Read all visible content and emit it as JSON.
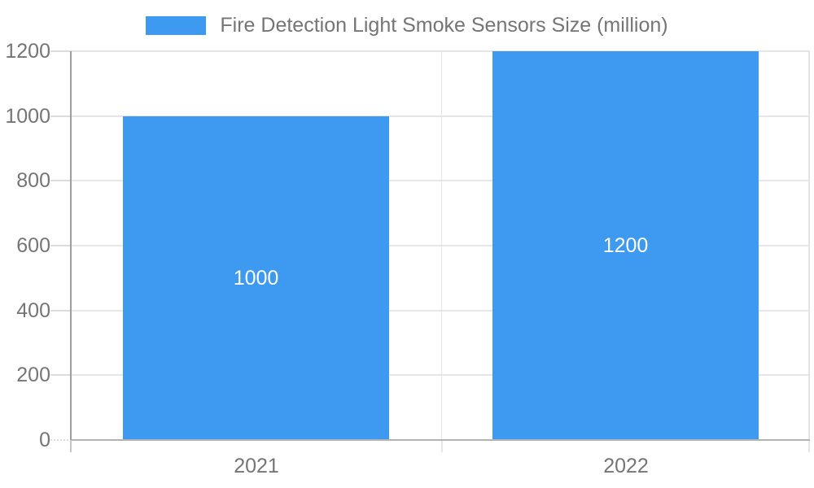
{
  "chart_data": {
    "type": "bar",
    "title": "Fire Detection Light Smoke Sensors Size (million)",
    "categories": [
      "2021",
      "2022"
    ],
    "series": [
      {
        "name": "Fire Detection Light Smoke Sensors Size (million)",
        "values": [
          1000,
          1200
        ]
      }
    ],
    "values": [
      1000,
      1200
    ],
    "data_labels": [
      "1000",
      "1200"
    ],
    "xlabel": "",
    "ylabel": "",
    "ylim": [
      0,
      1200
    ],
    "yticks": [
      0,
      200,
      400,
      600,
      800,
      1000,
      1200
    ],
    "grid": true,
    "legend_position": "top"
  },
  "legend": {
    "label": "Fire Detection Light Smoke Sensors Size (million)"
  },
  "colors": {
    "bar": "#3d9af0",
    "grid": "#e6e6e6",
    "plot_right_border": "#e3e3e3",
    "axis_y": "#9e9e9e",
    "axis_y_below": "#c6c6c6",
    "axis_x": "#b3b3b3",
    "tick": "#dcdcdc",
    "label_text": "#757575",
    "bar_label_text": "#ffffff",
    "background": "#ffffff"
  }
}
